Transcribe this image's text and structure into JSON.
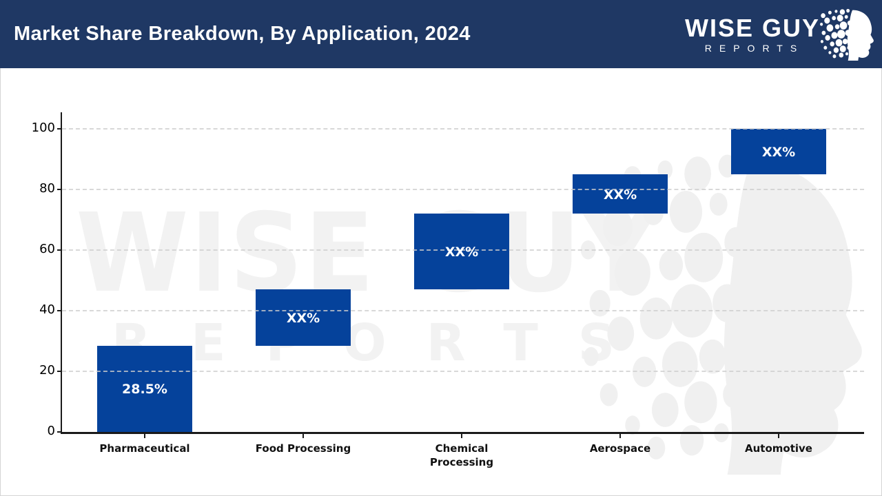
{
  "header": {
    "title": "Market Share Breakdown, By Application, 2024",
    "bg_color": "#1F3864",
    "logo": {
      "line1": "WISE GUY",
      "line2": "REPORTS"
    }
  },
  "watermark": {
    "line1": "WISE GUY",
    "line2": "REPORTS"
  },
  "chart_data": {
    "type": "bar",
    "variant": "floating-waterfall",
    "title": "Market Share Breakdown, By Application, 2024",
    "categories": [
      "Pharmaceutical",
      "Food Processing",
      "Chemical Processing",
      "Aerospace",
      "Automotive"
    ],
    "segments": [
      {
        "category": "Pharmaceutical",
        "start": 0,
        "end": 28.5,
        "label": "28.5%"
      },
      {
        "category": "Food Processing",
        "start": 28.5,
        "end": 47,
        "label": "XX%"
      },
      {
        "category": "Chemical Processing",
        "start": 47,
        "end": 72,
        "label": "XX%"
      },
      {
        "category": "Aerospace",
        "start": 72,
        "end": 85,
        "label": "XX%"
      },
      {
        "category": "Automotive",
        "start": 85,
        "end": 100,
        "label": "XX%"
      }
    ],
    "values": [
      28.5,
      18.5,
      25,
      13,
      15
    ],
    "yticks": [
      0,
      20,
      40,
      60,
      80,
      100
    ],
    "ylim": [
      0,
      100
    ],
    "xlabel": "",
    "ylabel": "",
    "legend": "none",
    "grid": {
      "axis": "y",
      "style": "dashed",
      "color": "#D0D0D0"
    },
    "bar_color": "#05429B",
    "bar_label_color": "#FFFFFF",
    "watermark_color": "#F2F2F2"
  }
}
